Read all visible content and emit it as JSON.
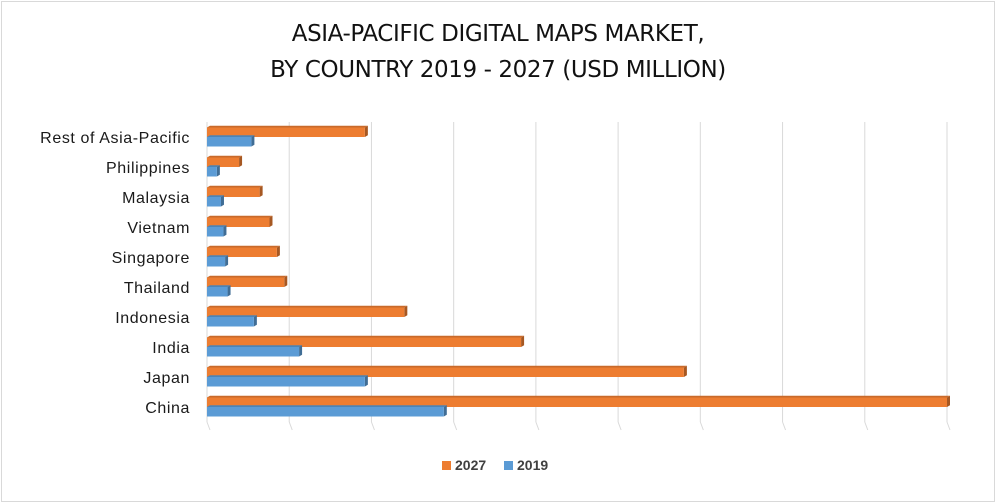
{
  "chart_data": {
    "type": "bar",
    "orientation": "horizontal",
    "title_line1": "ASIA-PACIFIC DIGITAL MAPS MARKET,",
    "title_line2": "BY COUNTRY 2019 - 2027 (USD MILLION)",
    "xlabel": "",
    "ylabel": "",
    "grid": true,
    "legend_position": "bottom",
    "xlim": [
      0,
      9
    ],
    "categories": [
      "China",
      "Japan",
      "India",
      "Indonesia",
      "Thailand",
      "Singapore",
      "Vietnam",
      "Malaysia",
      "Philippines",
      "Rest of Asia-Pacific"
    ],
    "series": [
      {
        "name": "2027",
        "color": "#ED7D31",
        "values": [
          9.0,
          5.8,
          3.82,
          2.4,
          0.94,
          0.85,
          0.76,
          0.64,
          0.39,
          1.92
        ]
      },
      {
        "name": "2019",
        "color": "#5B9BD5",
        "values": [
          2.88,
          1.92,
          1.12,
          0.57,
          0.25,
          0.22,
          0.2,
          0.17,
          0.12,
          0.54
        ]
      }
    ]
  }
}
